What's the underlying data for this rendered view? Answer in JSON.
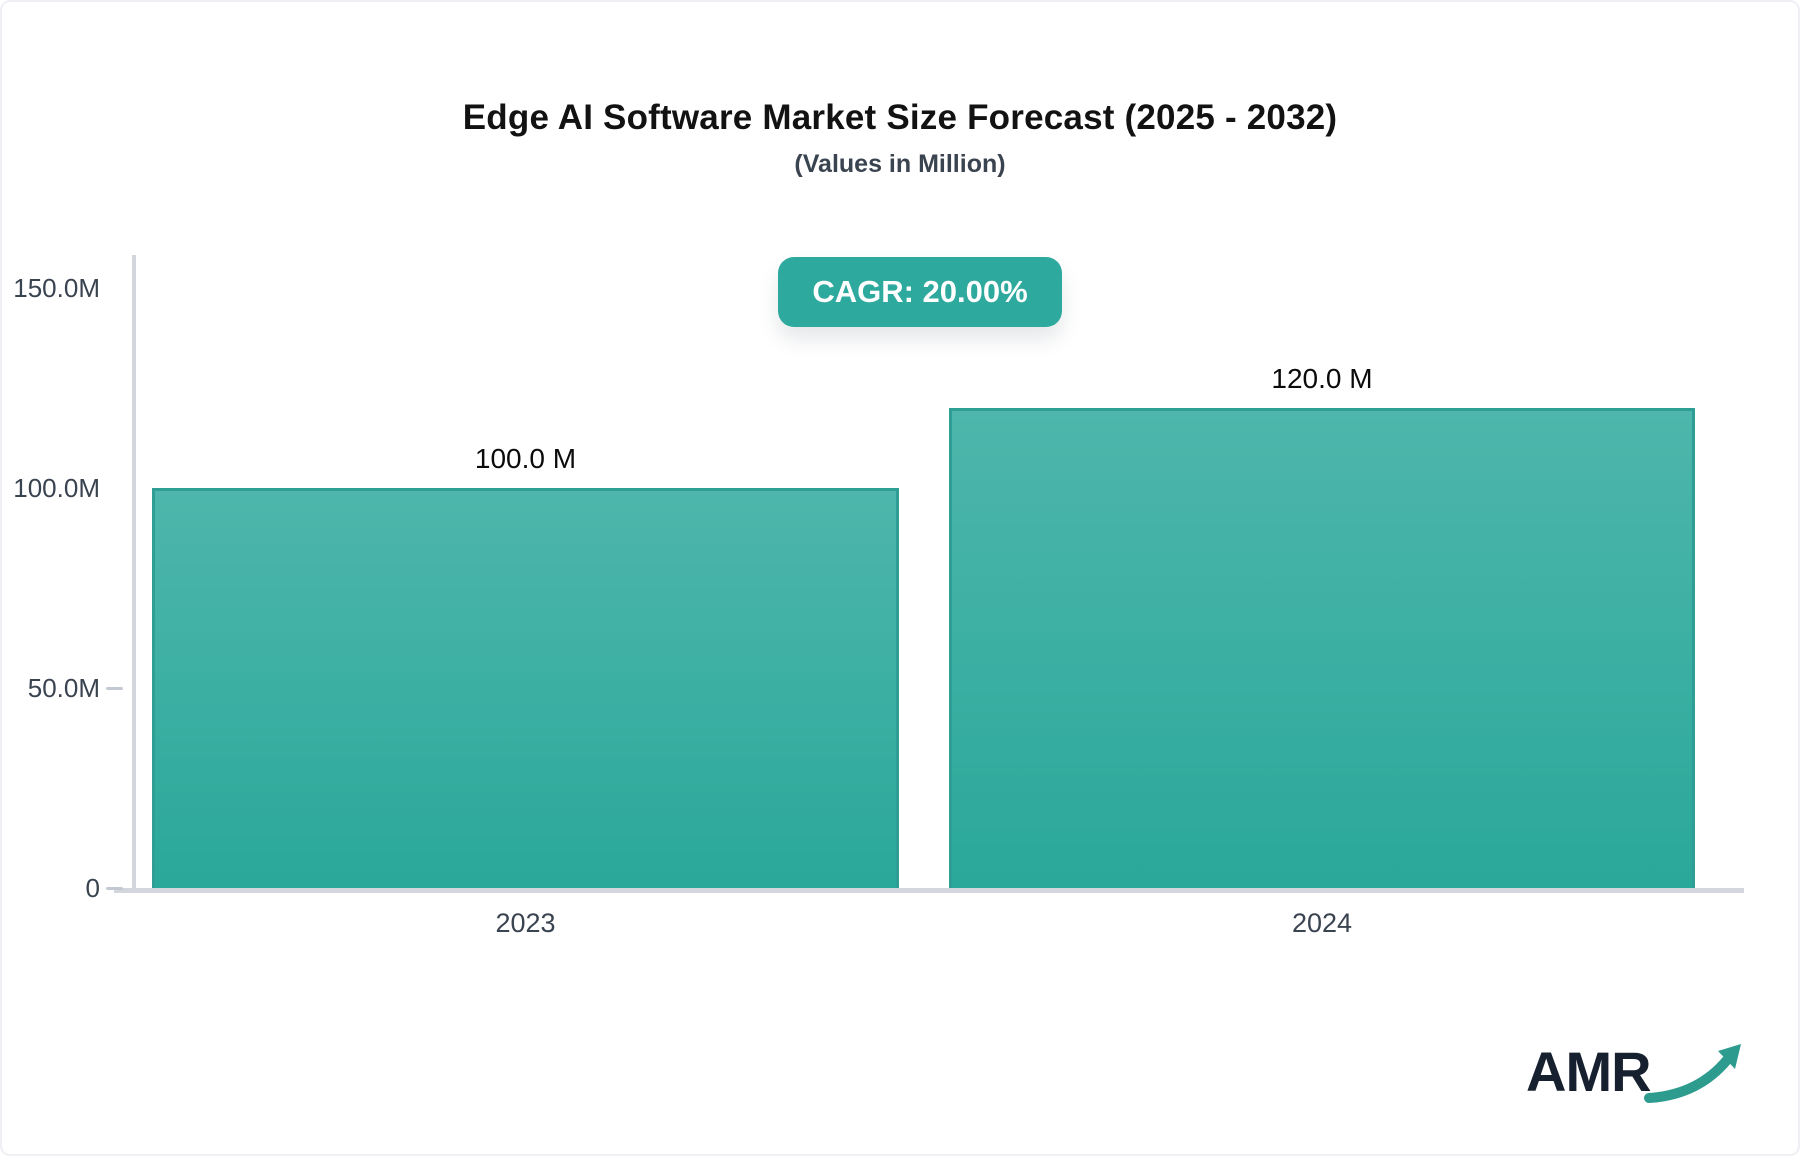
{
  "header": {
    "title": "Edge AI Software Market Size Forecast (2025 - 2032)",
    "subtitle": "(Values in Million)",
    "cagr_label": "CAGR: 20.00%"
  },
  "chart_data": {
    "type": "bar",
    "title": "Edge AI Software Market Size Forecast (2025 - 2032)",
    "subtitle": "(Values in Million)",
    "unit": "Million",
    "cagr_text": "CAGR: 20.00%",
    "cagr_value_pct": 20.0,
    "categories": [
      "2023",
      "2024"
    ],
    "values": [
      100.0,
      120.0
    ],
    "value_labels": [
      "100.0 M",
      "120.0 M"
    ],
    "ylim": [
      0,
      150
    ],
    "yticks": [
      {
        "label": "150.0M",
        "value": 150,
        "dash": false
      },
      {
        "label": "100.0M",
        "value": 100,
        "dash": false
      },
      {
        "label": "50.0M",
        "value": 50,
        "dash": true
      },
      {
        "label": "0",
        "value": 0,
        "dash": true
      }
    ],
    "legend": "none",
    "grid": false
  },
  "colors": {
    "bar_gradient_top": "#4eb6ac",
    "bar_gradient_bottom": "#2aa89a",
    "bar_border": "#2f9e94",
    "badge_bg": "#2ea99d",
    "axis_line": "#d3d7dd",
    "tick_text": "#3a4350",
    "value_label": "#0b0b0b",
    "title_text": "#121212",
    "logo_text": "#16202e",
    "logo_arrow": "#2d9c8f"
  },
  "logo": {
    "text": "AMR"
  }
}
